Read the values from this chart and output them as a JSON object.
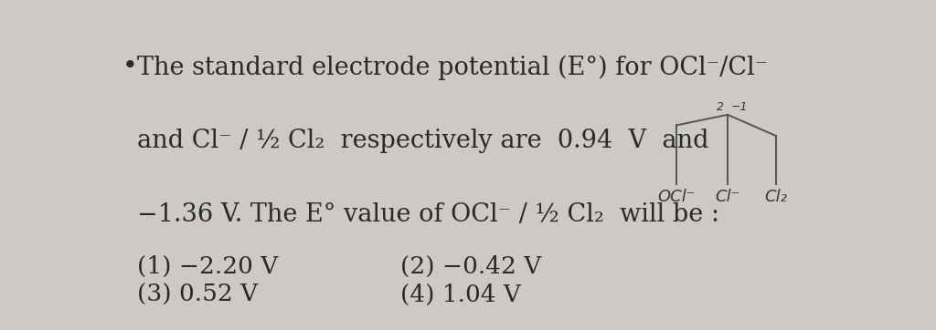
{
  "bg_color": "#cdc9c5",
  "text_color": "#2a2a2a",
  "fontsize_main": 19.5,
  "fontsize_opt": 19,
  "fontsize_annot": 13,
  "line1a": "The standard electrode potential (E°) for OCl",
  "line1b": "⁻",
  "line1c": "/Cl",
  "line1d": "⁻",
  "line2a": "and Cl",
  "line2b": "⁻",
  "line2c": " / ½ Cl₂  respectively are  0.94  V  and",
  "line3a": "−1.36 V. The E° value of OCl",
  "line3b": "⁻",
  "line3c": " / ½ Cl₂  will be :",
  "opt1": "(1) −2.20 V",
  "opt2": "(2) −0.42 V",
  "opt3": "(3) 0.52 V",
  "opt4": "(4) 1.04 V",
  "annot_ocl": "OCl",
  "annot_cl": "Cl",
  "annot_cl2": "Cl₂",
  "annot_color": "#3a3530"
}
